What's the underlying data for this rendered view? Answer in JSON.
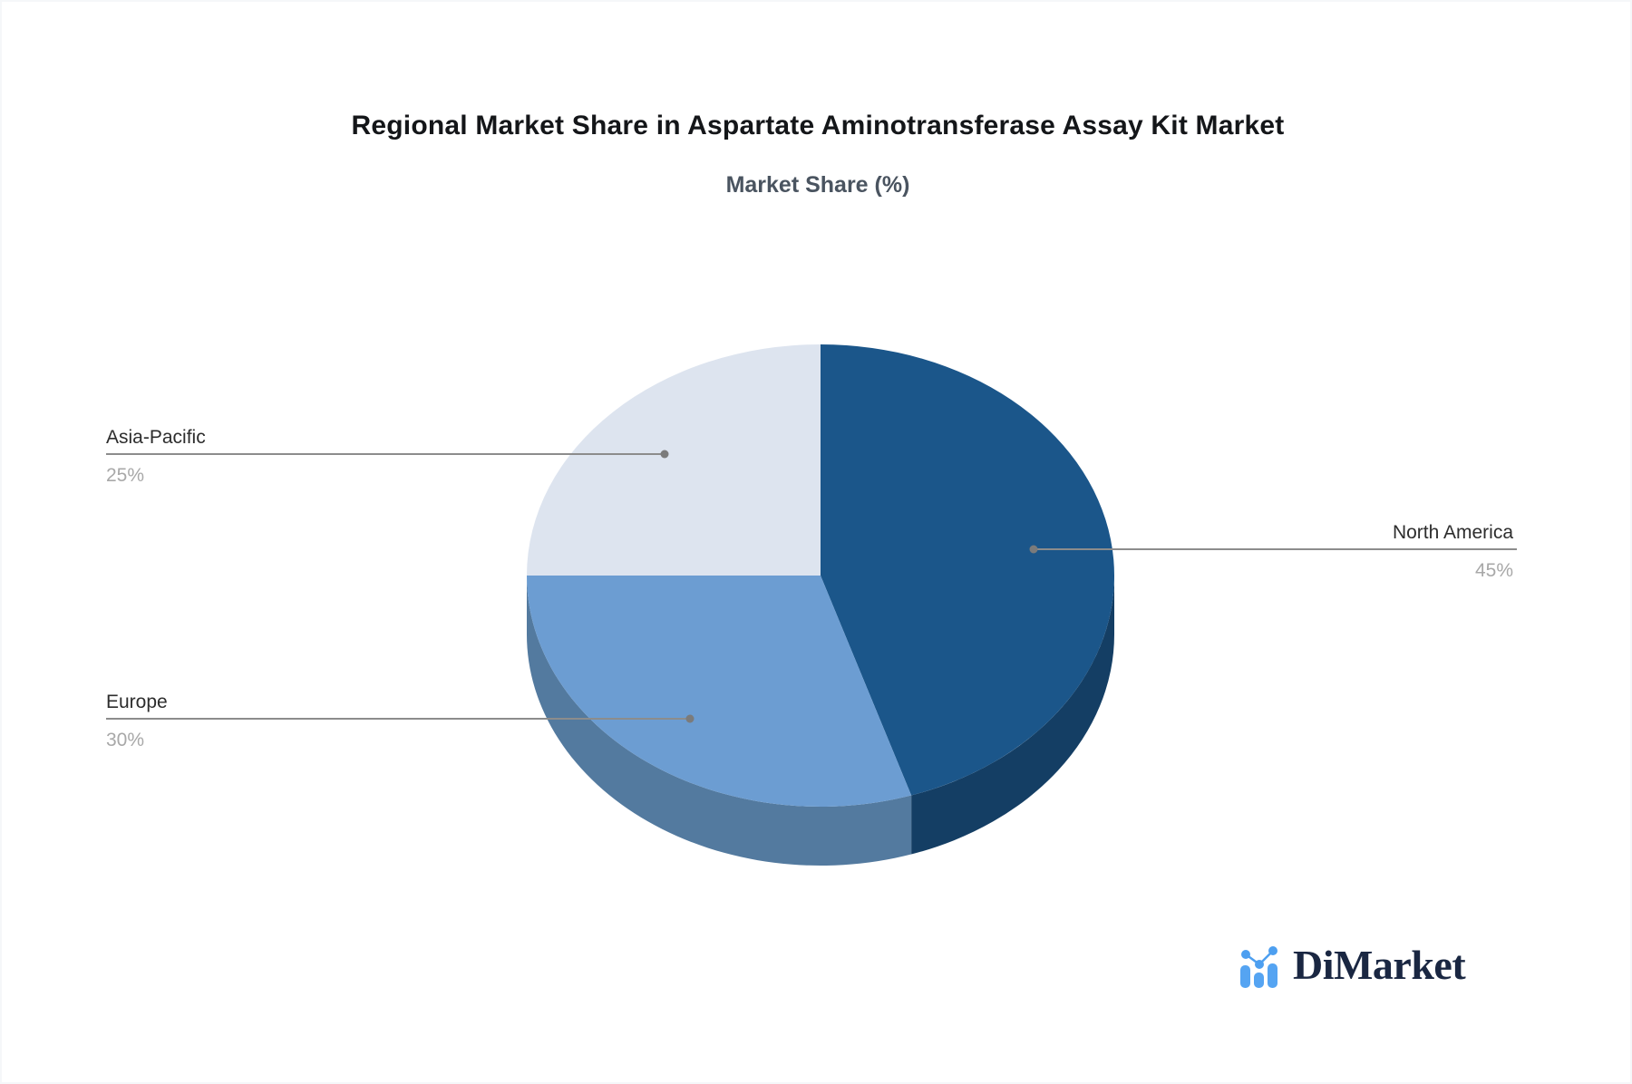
{
  "title": "Regional Market Share in Aspartate Aminotransferase Assay Kit Market",
  "subtitle": "Market Share (%)",
  "brand": {
    "name": "DiMarket"
  },
  "chart_data": {
    "type": "pie",
    "title": "Regional Market Share in Aspartate Aminotransferase Assay Kit Market",
    "subtitle": "Market Share (%)",
    "unit": "%",
    "style": "3d-pie",
    "start_angle_deg": 0,
    "direction": "clockwise",
    "legend_position": "none",
    "slices": [
      {
        "label": "North America",
        "value": 45,
        "display": "45%",
        "color": "#1b568a",
        "rim_color": "#143e64",
        "label_side": "right"
      },
      {
        "label": "Europe",
        "value": 30,
        "display": "30%",
        "color": "#6c9dd2",
        "rim_color": "#537a9f",
        "label_side": "left"
      },
      {
        "label": "Asia-Pacific",
        "value": 25,
        "display": "25%",
        "color": "#dde4ef",
        "rim_color": "#b9c4d6",
        "label_side": "left"
      }
    ],
    "label_name_color": "#2d2d2d",
    "label_value_color": "#a8a8a8",
    "leader_line_color": "#8c8c8c",
    "leader_dot_color": "#7b7b7b"
  }
}
